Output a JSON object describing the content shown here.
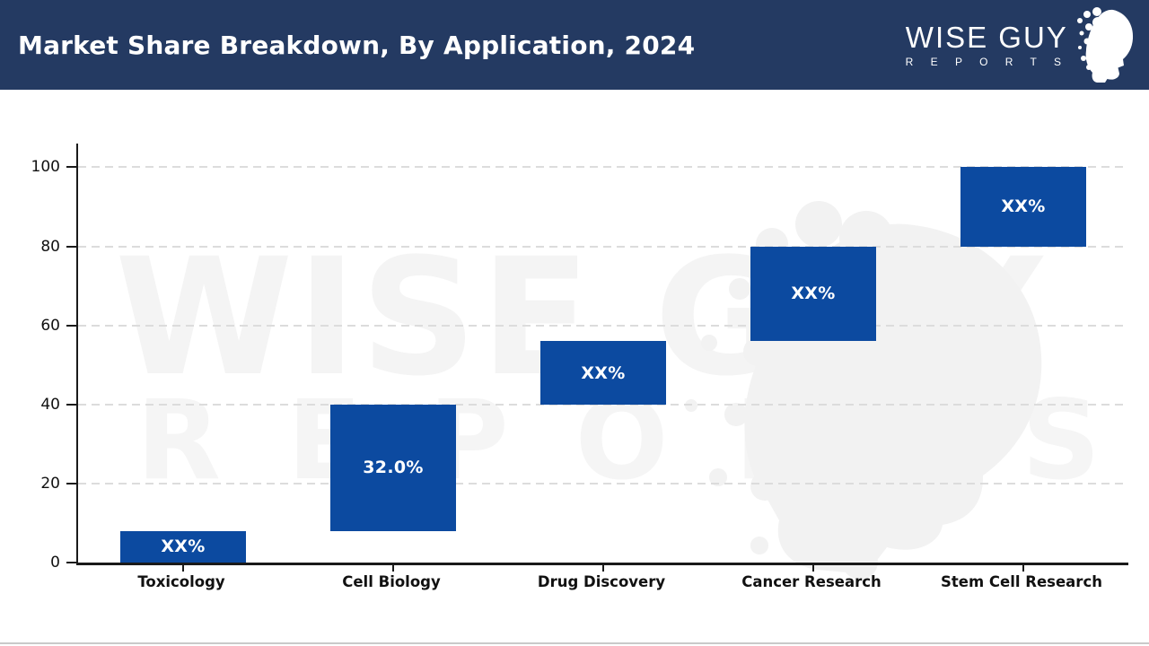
{
  "header": {
    "title": "Market Share Breakdown, By Application, 2024",
    "bg_color": "#243A62",
    "brand": {
      "line1": "WISE GUY",
      "line2": "R E P O R T S"
    }
  },
  "watermark": {
    "line1": "WISE GUY",
    "line2": "REPORTS"
  },
  "chart_data": {
    "type": "bar",
    "subtype": "floating-segment-waterfall",
    "title": "Market Share Breakdown, By Application, 2024",
    "categories": [
      "Toxicology",
      "Cell Biology",
      "Drug Discovery",
      "Cancer Research",
      "Stem Cell Research"
    ],
    "segments": [
      {
        "category": "Toxicology",
        "start": 0,
        "end": 8,
        "value": 8,
        "label": "XX%"
      },
      {
        "category": "Cell Biology",
        "start": 8,
        "end": 40,
        "value": 32,
        "label": "32.0%"
      },
      {
        "category": "Drug Discovery",
        "start": 40,
        "end": 56,
        "value": 16,
        "label": "XX%"
      },
      {
        "category": "Cancer Research",
        "start": 56,
        "end": 80,
        "value": 24,
        "label": "XX%"
      },
      {
        "category": "Stem Cell Research",
        "start": 80,
        "end": 100,
        "value": 20,
        "label": "XX%"
      }
    ],
    "y_ticks": [
      0,
      20,
      40,
      60,
      80,
      100
    ],
    "ylim": [
      0,
      106
    ],
    "xlabel": "",
    "ylabel": "",
    "grid": "horizontal-dashed",
    "gridline_color": "#dcdcdc",
    "legend": "none",
    "bar_color": "#0C4AA0",
    "bar_label_color": "#FFFFFF",
    "axis_color": "#1a1a1a"
  }
}
